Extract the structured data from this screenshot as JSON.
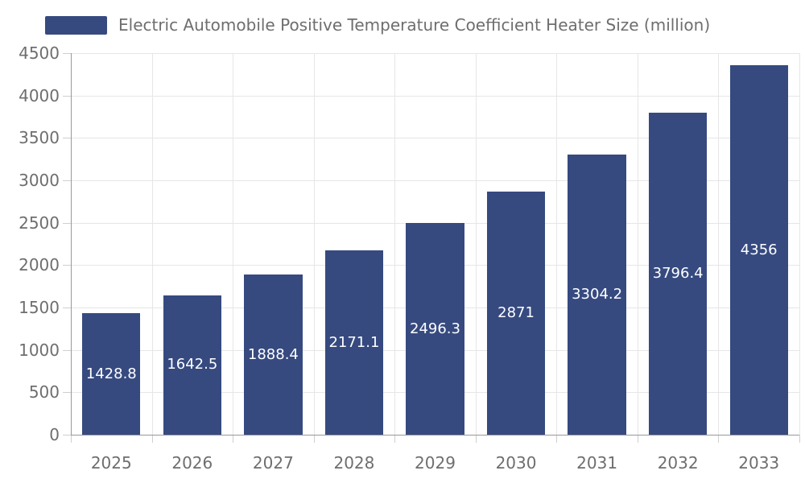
{
  "colors": {
    "bar": "#364A80",
    "grid": "#E6E6E6",
    "axis": "#999999",
    "tick": "#CFCFCF",
    "axis_text": "#6E6E6E",
    "value_label": "#FFFFFF",
    "background": "#FFFFFF"
  },
  "chart_data": {
    "type": "bar",
    "title": "Electric Automobile Positive Temperature Coefficient Heater Size (million)",
    "legend_position": "top-left",
    "categories": [
      "2025",
      "2026",
      "2027",
      "2028",
      "2029",
      "2030",
      "2031",
      "2032",
      "2033"
    ],
    "values": [
      1428.8,
      1642.5,
      1888.4,
      2171.1,
      2496.3,
      2871,
      3304.2,
      3796.4,
      4356
    ],
    "value_labels": [
      "1428.8",
      "1642.5",
      "1888.4",
      "2171.1",
      "2496.3",
      "2871",
      "3304.2",
      "3796.4",
      "4356"
    ],
    "value_label_position": "center-inside",
    "xlabel": "",
    "ylabel": "",
    "ylim": [
      0,
      4500
    ],
    "yticks": [
      0,
      500,
      1000,
      1500,
      2000,
      2500,
      3000,
      3500,
      4000,
      4500
    ],
    "grid": true
  }
}
